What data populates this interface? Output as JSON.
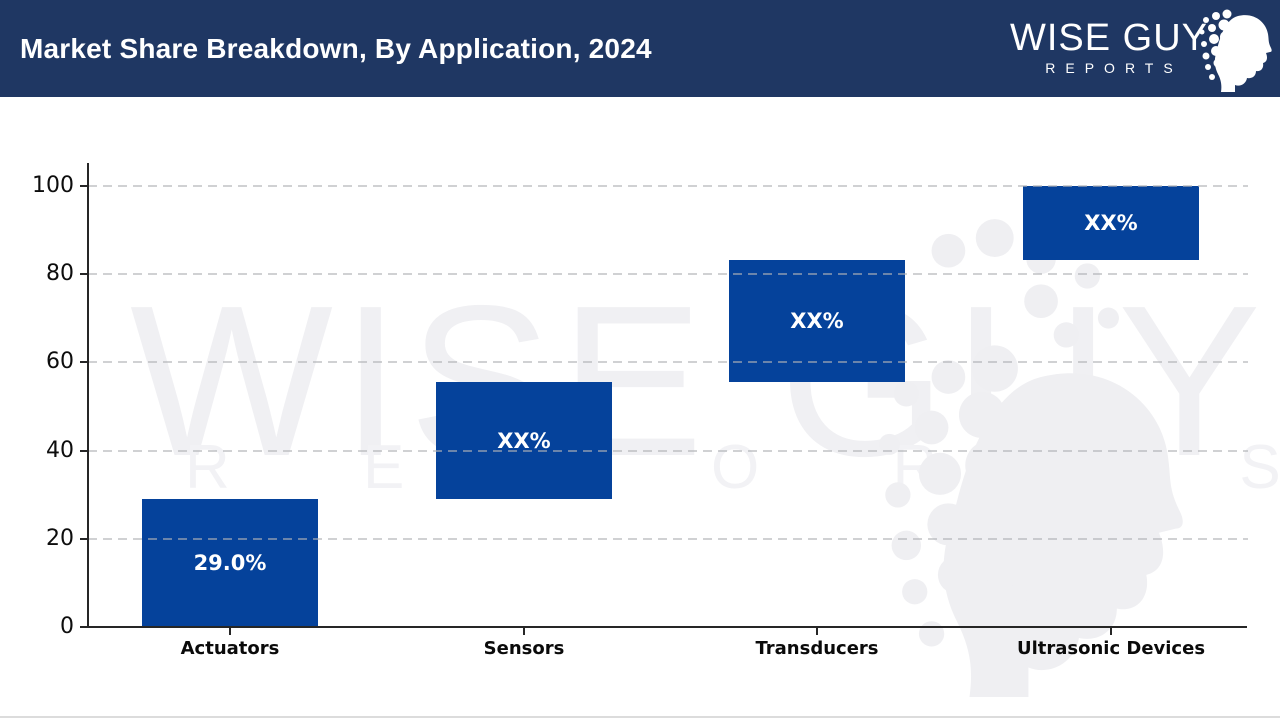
{
  "header": {
    "title": "Market Share Breakdown, By Application, 2024",
    "bg_color": "#1f3763",
    "logo": {
      "line1": "WISE GUY",
      "line2": "REPORTS"
    }
  },
  "watermark": {
    "line1": "WISE GUY",
    "line2": "REPORTS"
  },
  "chart_data": {
    "type": "bar",
    "subtype": "floating-waterfall",
    "title": "Market Share Breakdown, By Application, 2024",
    "categories": [
      "Actuators",
      "Sensors",
      "Transducers",
      "Ultrasonic Devices"
    ],
    "bars": [
      {
        "category": "Actuators",
        "start": 0,
        "end": 29,
        "label": "29.0%"
      },
      {
        "category": "Sensors",
        "start": 29,
        "end": 55.5,
        "label": "XX%"
      },
      {
        "category": "Transducers",
        "start": 55.5,
        "end": 83.3,
        "label": "XX%"
      },
      {
        "category": "Ultrasonic Devices",
        "start": 83.3,
        "end": 100,
        "label": "XX%"
      }
    ],
    "bar_color": "#05429b",
    "yticks": [
      0,
      20,
      40,
      60,
      80,
      100
    ],
    "ylim": [
      0,
      105
    ],
    "xlabel": "",
    "ylabel": "",
    "grid": "horizontal-dashed",
    "legend": "none"
  }
}
